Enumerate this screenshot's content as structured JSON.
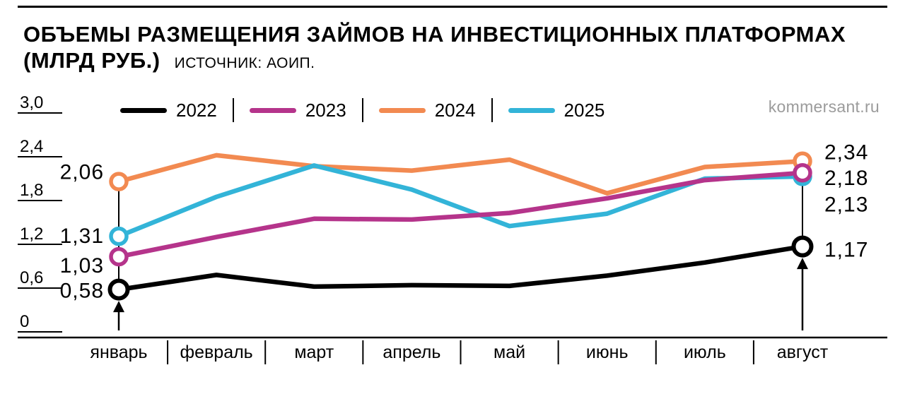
{
  "header": {
    "title_line1": "ОБЪЕМЫ РАЗМЕЩЕНИЯ ЗАЙМОВ НА ИНВЕСТИЦИОННЫХ ПЛАТФОРМАХ",
    "title_line2": "(МЛРД РУБ.)",
    "source": "ИСТОЧНИК: АОИП.",
    "watermark": "kommersant.ru"
  },
  "chart_data": {
    "type": "line",
    "title": "Объемы размещения займов на инвестиционных платформах (млрд руб.)",
    "categories": [
      "январь",
      "февраль",
      "март",
      "апрель",
      "май",
      "июнь",
      "июль",
      "август"
    ],
    "y_ticks": [
      {
        "label": "3,0",
        "value": 3.0
      },
      {
        "label": "2,4",
        "value": 2.4
      },
      {
        "label": "1,8",
        "value": 1.8
      },
      {
        "label": "1,2",
        "value": 1.2
      },
      {
        "label": "0,6",
        "value": 0.6
      },
      {
        "label": "0",
        "value": 0
      }
    ],
    "ylim": [
      0,
      3.0
    ],
    "grid": "left-tick-underlines-only",
    "legend_position": "top",
    "series": [
      {
        "name": "2024",
        "color": "#f28a51",
        "values": [
          2.06,
          2.42,
          2.27,
          2.21,
          2.36,
          1.9,
          2.26,
          2.34
        ],
        "first_label": "2,06",
        "last_label": "2,34"
      },
      {
        "name": "2025",
        "color": "#33b4d8",
        "values": [
          1.31,
          1.85,
          2.28,
          1.95,
          1.45,
          1.62,
          2.1,
          2.13
        ],
        "first_label": "1,31",
        "last_label": "2,13"
      },
      {
        "name": "2023",
        "color": "#b5348b",
        "values": [
          1.03,
          1.3,
          1.55,
          1.54,
          1.63,
          1.83,
          2.08,
          2.18
        ],
        "first_label": "1,03",
        "last_label": "2,18"
      },
      {
        "name": "2022",
        "color": "#000000",
        "values": [
          0.58,
          0.78,
          0.62,
          0.64,
          0.63,
          0.77,
          0.95,
          1.17
        ],
        "first_label": "0,58",
        "last_label": "1,17"
      }
    ],
    "legend_order": [
      "2022",
      "2023",
      "2024",
      "2025"
    ],
    "annotated_months": [
      "январь",
      "август"
    ],
    "axis_color": "#000000"
  }
}
